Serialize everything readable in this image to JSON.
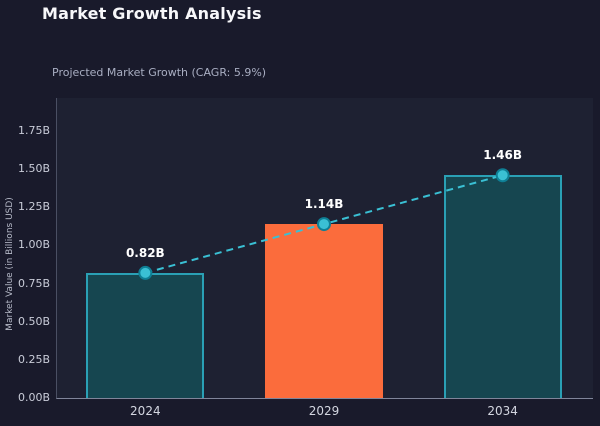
{
  "header": {
    "title": "Market Growth Analysis",
    "subtitle": "Projected Market Growth (CAGR: 5.9%)"
  },
  "chart_data": {
    "type": "bar",
    "title": "Market Growth Analysis",
    "subtitle": "Projected Market Growth (CAGR: 5.9%)",
    "categories": [
      "2024",
      "2029",
      "2034"
    ],
    "values": [
      0.82,
      1.14,
      1.46
    ],
    "value_labels": [
      "0.82B",
      "1.14B",
      "1.46B"
    ],
    "bar_styles": [
      "teal",
      "orange",
      "teal"
    ],
    "xlabel": "",
    "ylabel": "Market Value (in Billions USD)",
    "ylim": [
      0,
      1.75
    ],
    "ytick_values": [
      0,
      0.25,
      0.5,
      0.75,
      1.0,
      1.25,
      1.5,
      1.75
    ],
    "ytick_labels": [
      "0.00B",
      "0.25B",
      "0.50B",
      "0.75B",
      "1.00B",
      "1.25B",
      "1.50B",
      "1.75B"
    ],
    "grid": false,
    "legend": "none",
    "trend_line": true,
    "colors": {
      "background": "#191a2b",
      "plot_background": "#1e2132",
      "bar_teal_fill": "#164650",
      "bar_teal_border": "#2aa0b5",
      "bar_orange_fill": "#fb6c3c",
      "trend_line": "#3ac0d4",
      "marker_fill": "#3ac0d4",
      "marker_border": "#0f7f95",
      "title_text": "#f7f7fa",
      "subtitle_text": "#a9aec2",
      "tick_text": "#c9ccd8",
      "value_text": "#ffffff"
    }
  }
}
